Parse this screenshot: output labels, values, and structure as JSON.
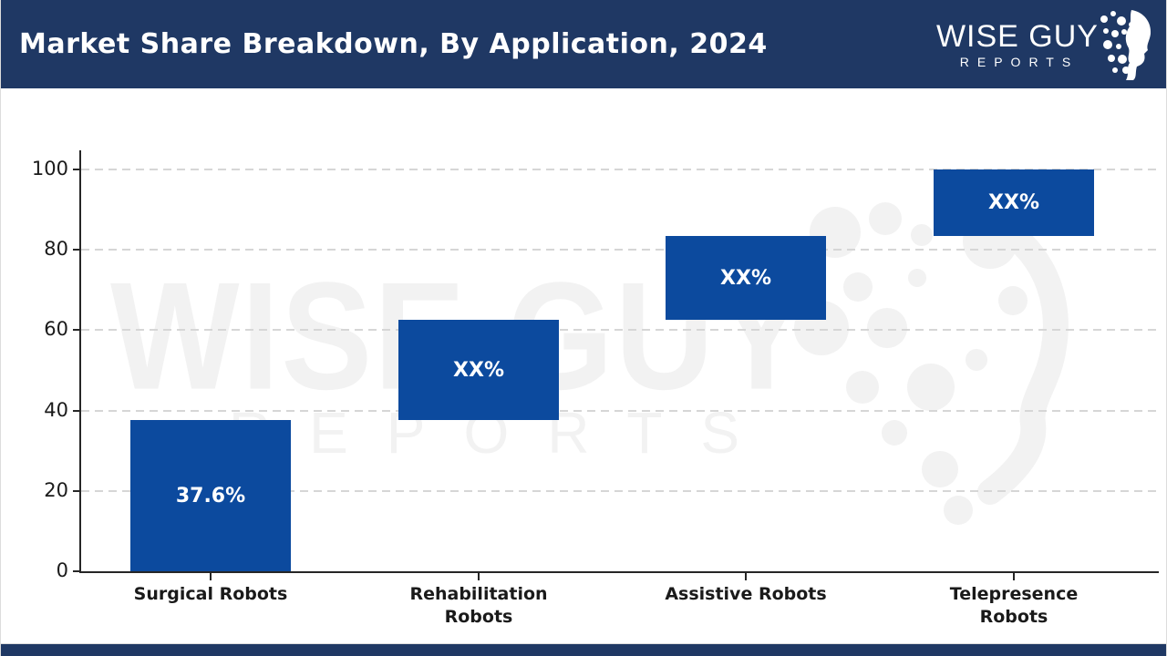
{
  "header": {
    "title": "Market Share Breakdown, By Application, 2024",
    "logo": {
      "line1": "WISE GUY",
      "line2": "REPORTS"
    }
  },
  "watermark": {
    "line1": "WISE GUY",
    "line2": "REPORTS"
  },
  "chart_data": {
    "type": "bar",
    "subtype": "waterfall",
    "title": "Market Share Breakdown, By Application, 2024",
    "xlabel": "",
    "ylabel": "",
    "ylim": [
      0,
      100
    ],
    "yticks": [
      0,
      20,
      40,
      60,
      80,
      100
    ],
    "grid": "horizontal-dashed",
    "legend": "none",
    "categories": [
      "Surgical Robots",
      "Rehabilitation Robots",
      "Assistive Robots",
      "Telepresence Robots"
    ],
    "tick_labels": [
      "Surgical Robots",
      "Rehabilitation\nRobots",
      "Assistive Robots",
      "Telepresence\nRobots"
    ],
    "series": [
      {
        "name": "Market Share",
        "segments": [
          {
            "category": "Surgical Robots",
            "start": 0,
            "end": 37.6,
            "label": "37.6%"
          },
          {
            "category": "Rehabilitation Robots",
            "start": 37.6,
            "end": 62.5,
            "label": "XX%"
          },
          {
            "category": "Assistive Robots",
            "start": 62.5,
            "end": 83.4,
            "label": "XX%"
          },
          {
            "category": "Telepresence Robots",
            "start": 83.4,
            "end": 100,
            "label": "XX%"
          }
        ]
      }
    ]
  },
  "colors": {
    "header_bg": "#1f3864",
    "footer_bg": "#1f3864",
    "bar": "#0c4a9e",
    "bar_label": "#ffffff",
    "axis": "#262626",
    "tick_label": "#1a1a1a",
    "grid": "#d6d6d6",
    "watermark": "#f2f2f2"
  }
}
